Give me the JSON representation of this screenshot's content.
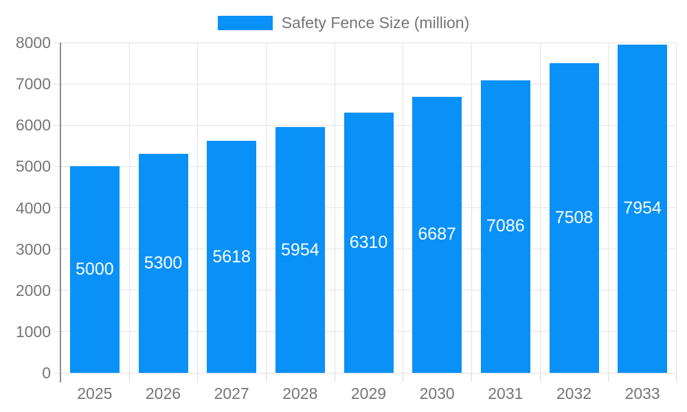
{
  "chart_data": {
    "type": "bar",
    "title": "",
    "legend_label": "Safety Fence Size (million)",
    "legend_position": "top-center",
    "categories": [
      "2025",
      "2026",
      "2027",
      "2028",
      "2029",
      "2030",
      "2031",
      "2032",
      "2033"
    ],
    "series": [
      {
        "name": "Safety Fence Size (million)",
        "values": [
          5000,
          5300,
          5618,
          5954,
          6310,
          6687,
          7086,
          7508,
          7954
        ]
      }
    ],
    "bar_value_labels": [
      "5000",
      "5300",
      "5618",
      "5954",
      "6310",
      "6687",
      "7086",
      "7508",
      "7954"
    ],
    "xlabel": "",
    "ylabel": "",
    "ylim": [
      0,
      8000
    ],
    "yticks": [
      0,
      1000,
      2000,
      3000,
      4000,
      5000,
      6000,
      7000,
      8000
    ],
    "ytick_labels": [
      "0",
      "1000",
      "2000",
      "3000",
      "4000",
      "5000",
      "6000",
      "7000",
      "8000"
    ],
    "grid": true,
    "colors": {
      "bar": "#0991F8",
      "axis_text": "#757575",
      "gridline": "#E3E3E3",
      "axis_line": "#8C8C8C",
      "tick": "#D6D6D6",
      "bar_label_text": "#FFFFFF",
      "background": "#FFFFFF"
    }
  }
}
